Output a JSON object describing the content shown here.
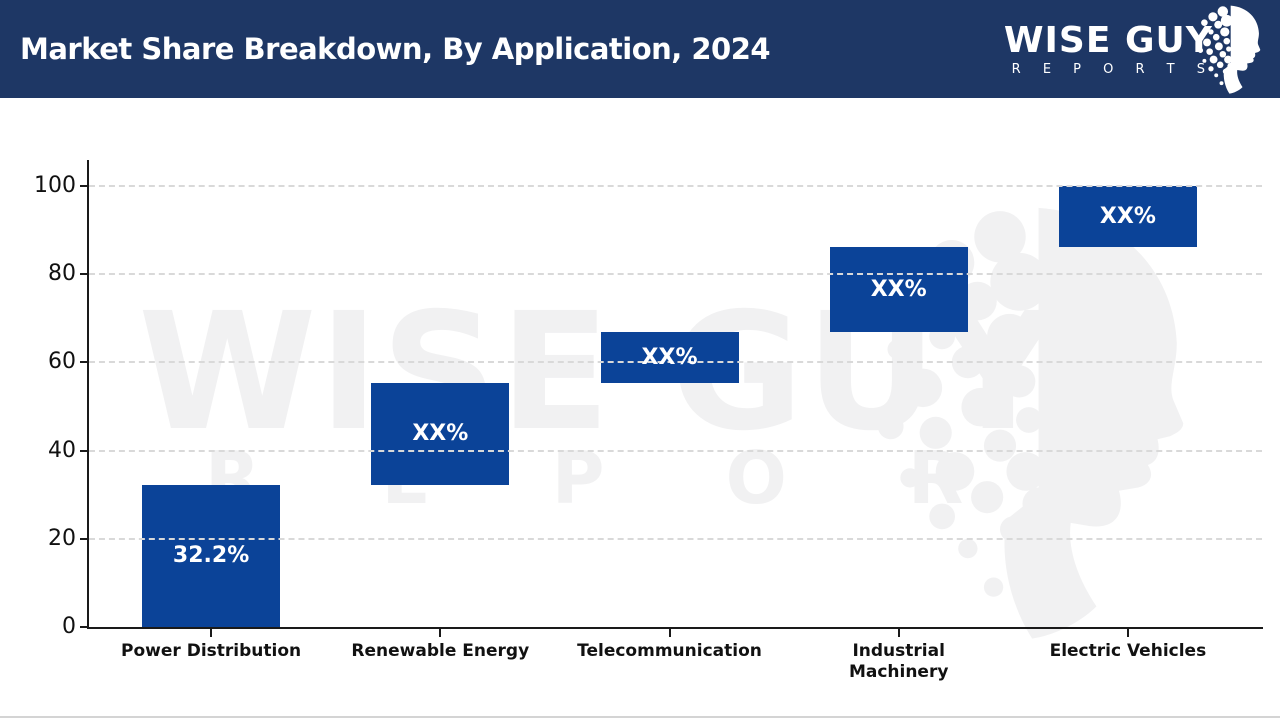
{
  "header": {
    "title": "Market Share Breakdown, By Application, 2024",
    "logo": {
      "name": "WISE GUY",
      "tagline": "R E P O R T S",
      "icon": "dotted-head-profile-icon"
    }
  },
  "watermark": {
    "line1": "WISE GUY",
    "line2": "R E P O R T S"
  },
  "colors": {
    "header_bg": "#1e3765",
    "bar": "#0b4398",
    "bar_label": "#ffffff",
    "axis": "#1a1a1a",
    "grid": "#d9d9d9",
    "tick_label": "#111111",
    "watermark": "#f1f1f2"
  },
  "chart_data": {
    "type": "bar",
    "variant": "waterfall",
    "title": "Market Share Breakdown, By Application, 2024",
    "xlabel": "",
    "ylabel": "",
    "ylim": [
      0,
      105
    ],
    "yticks": [
      0,
      20,
      40,
      60,
      80,
      100
    ],
    "grid": "horizontal-dashed",
    "legend": "none",
    "categories": [
      "Power Distribution",
      "Renewable Energy",
      "Telecommunication",
      "Industrial\nMachinery",
      "Electric Vehicles"
    ],
    "segments": [
      {
        "category": "Power Distribution",
        "start": 0,
        "end": 32.2,
        "value": 32.2,
        "label": "32.2%"
      },
      {
        "category": "Renewable Energy",
        "start": 32.2,
        "end": 55.4,
        "value": 23.2,
        "label": "XX%"
      },
      {
        "category": "Telecommunication",
        "start": 55.4,
        "end": 66.9,
        "value": 11.5,
        "label": "XX%"
      },
      {
        "category": "Industrial\nMachinery",
        "start": 66.9,
        "end": 86.2,
        "value": 19.3,
        "label": "XX%"
      },
      {
        "category": "Electric Vehicles",
        "start": 86.2,
        "end": 100,
        "value": 13.8,
        "label": "XX%"
      }
    ]
  }
}
